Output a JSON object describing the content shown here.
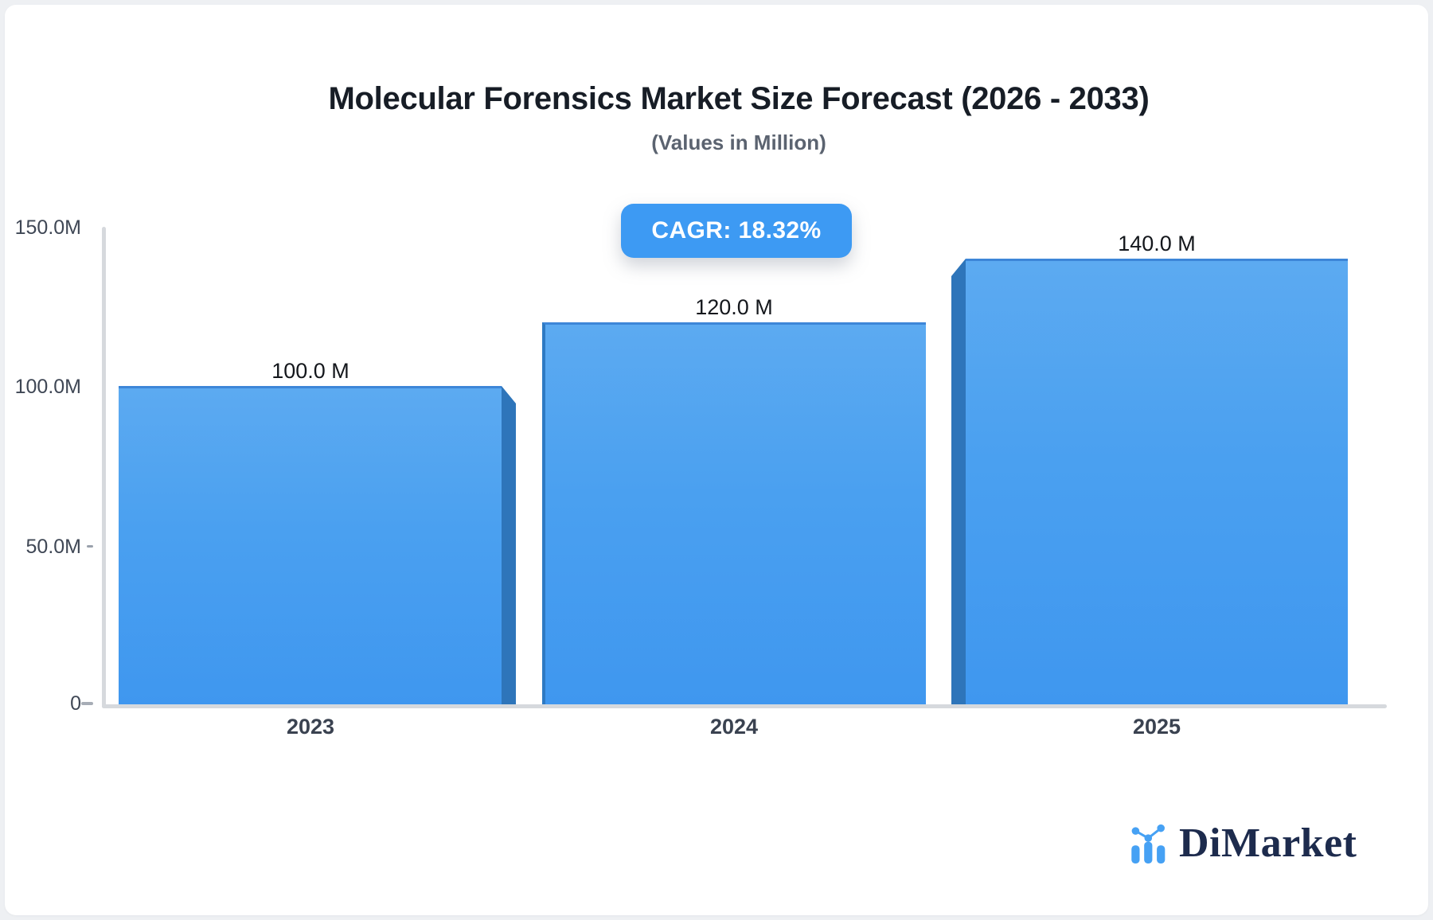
{
  "header": {
    "title": "Molecular Forensics Market Size Forecast (2026 - 2033)",
    "subtitle": "(Values in Million)"
  },
  "badge": {
    "label": "CAGR: 18.32%",
    "background_color": "#3d9af3",
    "text_color": "#ffffff"
  },
  "brand": {
    "name": "DiMarket",
    "icon": "bar-chart-logo-icon",
    "icon_color": "#46a1f4",
    "text_color": "#1d2b4d"
  },
  "chart_data": {
    "type": "bar",
    "title": "Molecular Forensics Market Size Forecast (2026 - 2033)",
    "subtitle": "(Values in Million)",
    "unit": "Million",
    "categories": [
      "2023",
      "2024",
      "2025"
    ],
    "values": [
      100,
      120,
      140
    ],
    "bar_labels": [
      "100.0 M",
      "120.0 M",
      "140.0 M"
    ],
    "cagr": "18.32%",
    "y_ticks": [
      {
        "label": "150.0M",
        "value": 150
      },
      {
        "label": "100.0M",
        "value": 100
      },
      {
        "label": "50.0M",
        "value": 50
      },
      {
        "label": "0",
        "value": 0
      }
    ],
    "ylim": [
      0,
      150
    ],
    "grid": false,
    "legend_position": "none",
    "bar_color_top": "#5caaf1",
    "bar_color_bottom": "#3f97ef",
    "bar_side_color": "#2e75ba",
    "axis_color": "#d6d9dd"
  }
}
